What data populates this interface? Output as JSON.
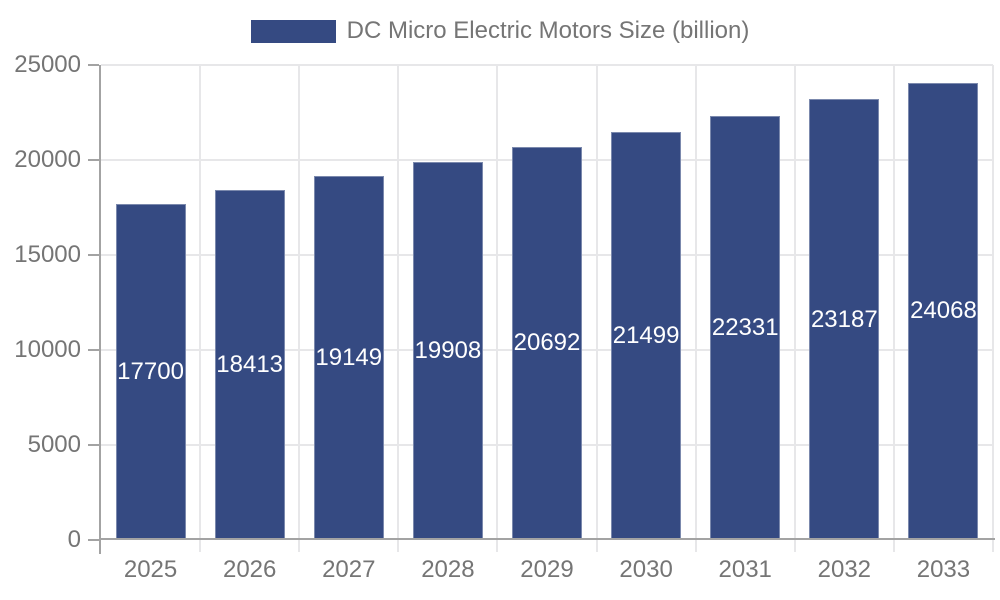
{
  "legend": {
    "label": "DC Micro Electric Motors Size (billion)"
  },
  "chart_data": {
    "type": "bar",
    "title": "DC Micro Electric Motors Size (billion)",
    "categories": [
      "2025",
      "2026",
      "2027",
      "2028",
      "2029",
      "2030",
      "2031",
      "2032",
      "2033"
    ],
    "series": [
      {
        "name": "DC Micro Electric Motors Size (billion)",
        "values": [
          17700,
          18413,
          19149,
          19908,
          20692,
          21499,
          22331,
          23187,
          24068
        ]
      }
    ],
    "xlabel": "",
    "ylabel": "",
    "ylim": [
      0,
      25000
    ],
    "yticks": [
      0,
      5000,
      10000,
      15000,
      20000,
      25000
    ],
    "grid": true,
    "legend_position": "top",
    "value_labels": "inside-center"
  },
  "colors": {
    "bar": "#354a82",
    "bar_border": "rgba(255,255,255,0.35)",
    "grid_line": "#e7e7e9",
    "axis_line": "#a3a3a3",
    "axis_text": "#757575",
    "value_text": "#ffffff",
    "background": "#ffffff"
  }
}
